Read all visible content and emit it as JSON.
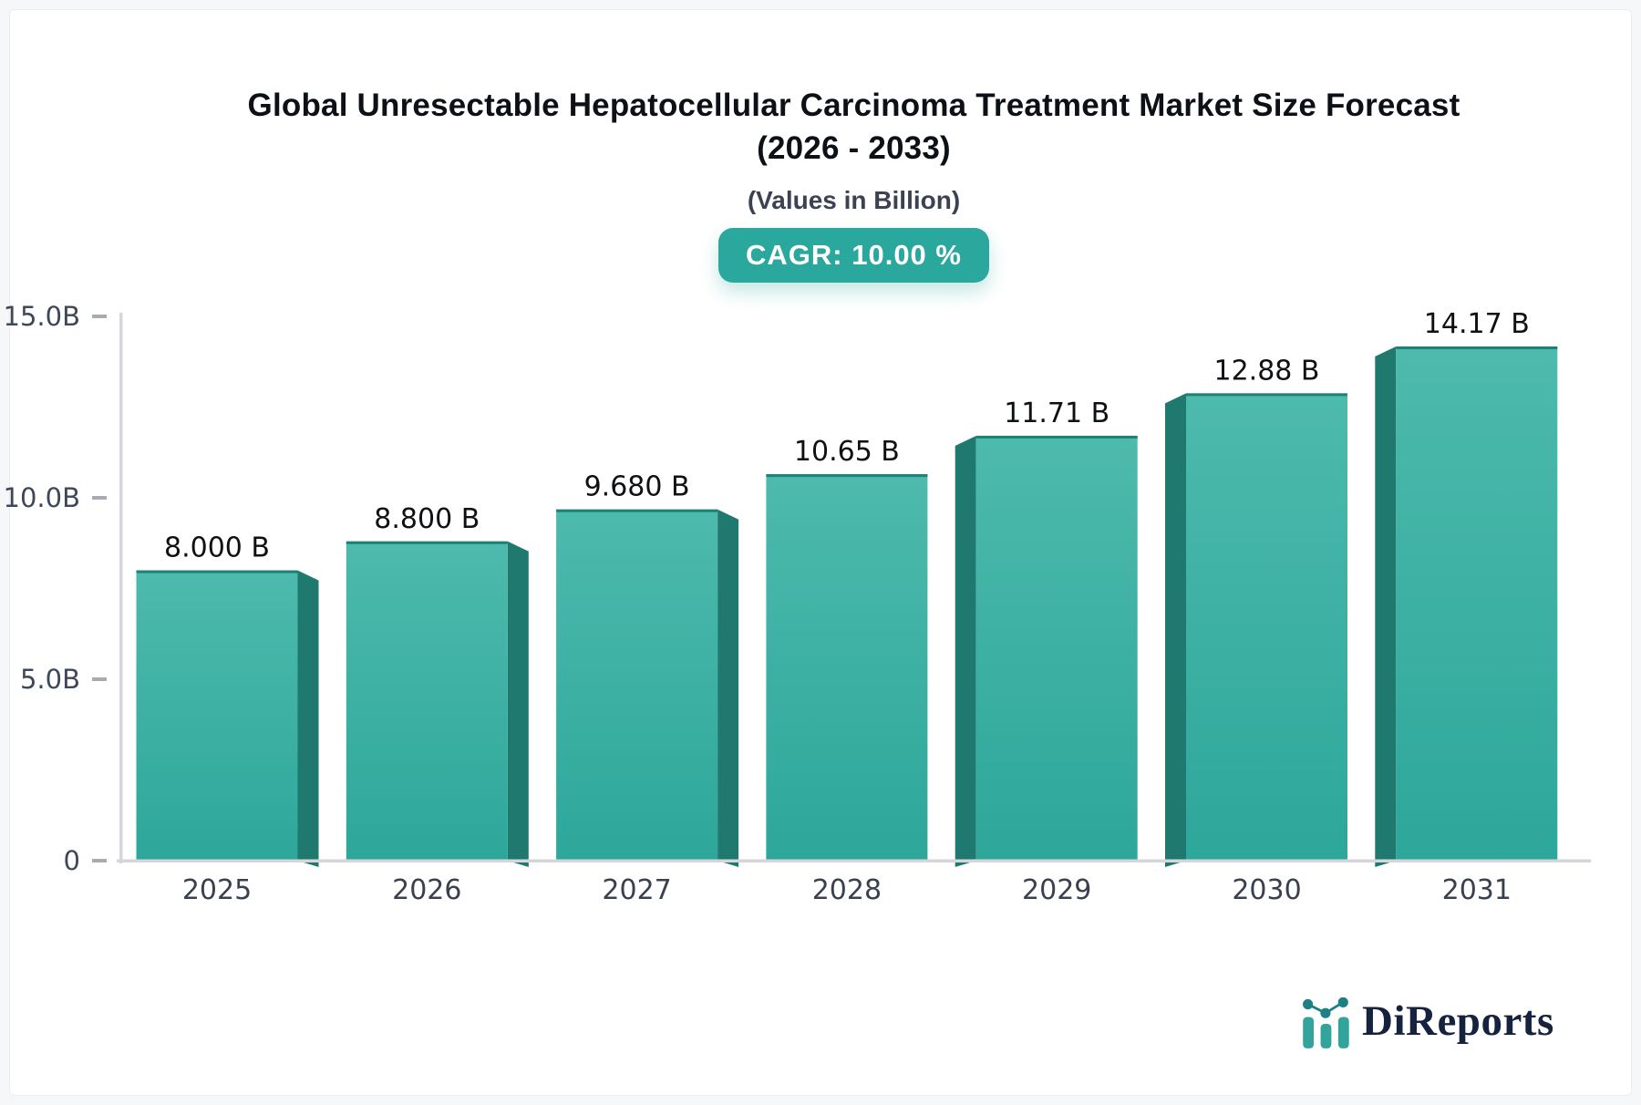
{
  "header": {
    "title_line1": "Global Unresectable Hepatocellular Carcinoma Treatment Market Size Forecast",
    "title_line2": "(2026 - 2033)",
    "subtitle": "(Values in Billion)",
    "cagr_label": "CAGR: 10.00 %"
  },
  "chart_data": {
    "type": "bar",
    "title": "Global Unresectable Hepatocellular Carcinoma Treatment Market Size Forecast (2026 - 2033)",
    "subtitle": "(Values in Billion)",
    "cagr": "10.00 %",
    "categories": [
      "2025",
      "2026",
      "2027",
      "2028",
      "2029",
      "2030",
      "2031"
    ],
    "values": [
      8.0,
      8.8,
      9.68,
      10.65,
      11.71,
      12.88,
      14.17
    ],
    "value_labels": [
      "8.000 B",
      "8.800 B",
      "9.680 B",
      "10.65 B",
      "11.71 B",
      "12.88 B",
      "14.17 B"
    ],
    "xlabel": "",
    "ylabel": "",
    "ylim": [
      0,
      15
    ],
    "yticks": [
      {
        "value": 0,
        "label": "0"
      },
      {
        "value": 5,
        "label": "5.0B"
      },
      {
        "value": 10,
        "label": "10.0B"
      },
      {
        "value": 15,
        "label": "15.0B"
      }
    ],
    "grid": false,
    "legend_position": "none"
  },
  "logo": {
    "text": "DiReports",
    "icon": "bar-chart-trend-icon"
  },
  "colors": {
    "accent_badge": "#2aa89d",
    "bar_gradient_top": "#4dbaad",
    "bar_gradient_bottom": "#2da79a",
    "bar_top_stroke": "#1e8176",
    "bar_side": "#20796f",
    "axis_line": "#d4d6dc",
    "tick_dash": "#a6abb4",
    "y_label": "#3e4859",
    "x_label": "#39414f",
    "value_label": "#0e1013",
    "logo_navy": "#16233f",
    "logo_teal": "#33a49b",
    "logo_dot": "#1d8087"
  }
}
